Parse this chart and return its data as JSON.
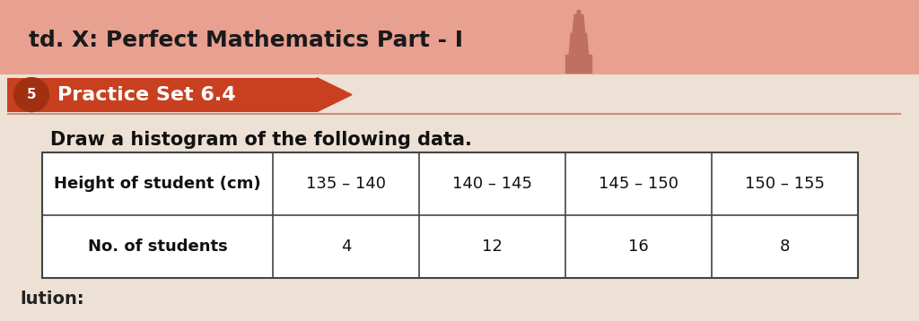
{
  "header_text": "td. X: Perfect Mathematics Part - I",
  "section_label": "Practice Set 6.4",
  "instruction": "Draw a histogram of the following data.",
  "table_col0_header": "Height of student (cm)",
  "table_col0_row2": "No. of students",
  "column_headers": [
    "135 – 140",
    "140 – 145",
    "145 – 150",
    "150 – 155"
  ],
  "values": [
    4,
    12,
    16,
    8
  ],
  "footer_text": "lution:",
  "bg_color": "#ede0d4",
  "header_bg": "#e8a090",
  "section_bg": "#c84020",
  "table_border": "#444444",
  "header_font_size": 18,
  "section_font_size": 16,
  "instruction_font_size": 15,
  "table_font_size": 13
}
